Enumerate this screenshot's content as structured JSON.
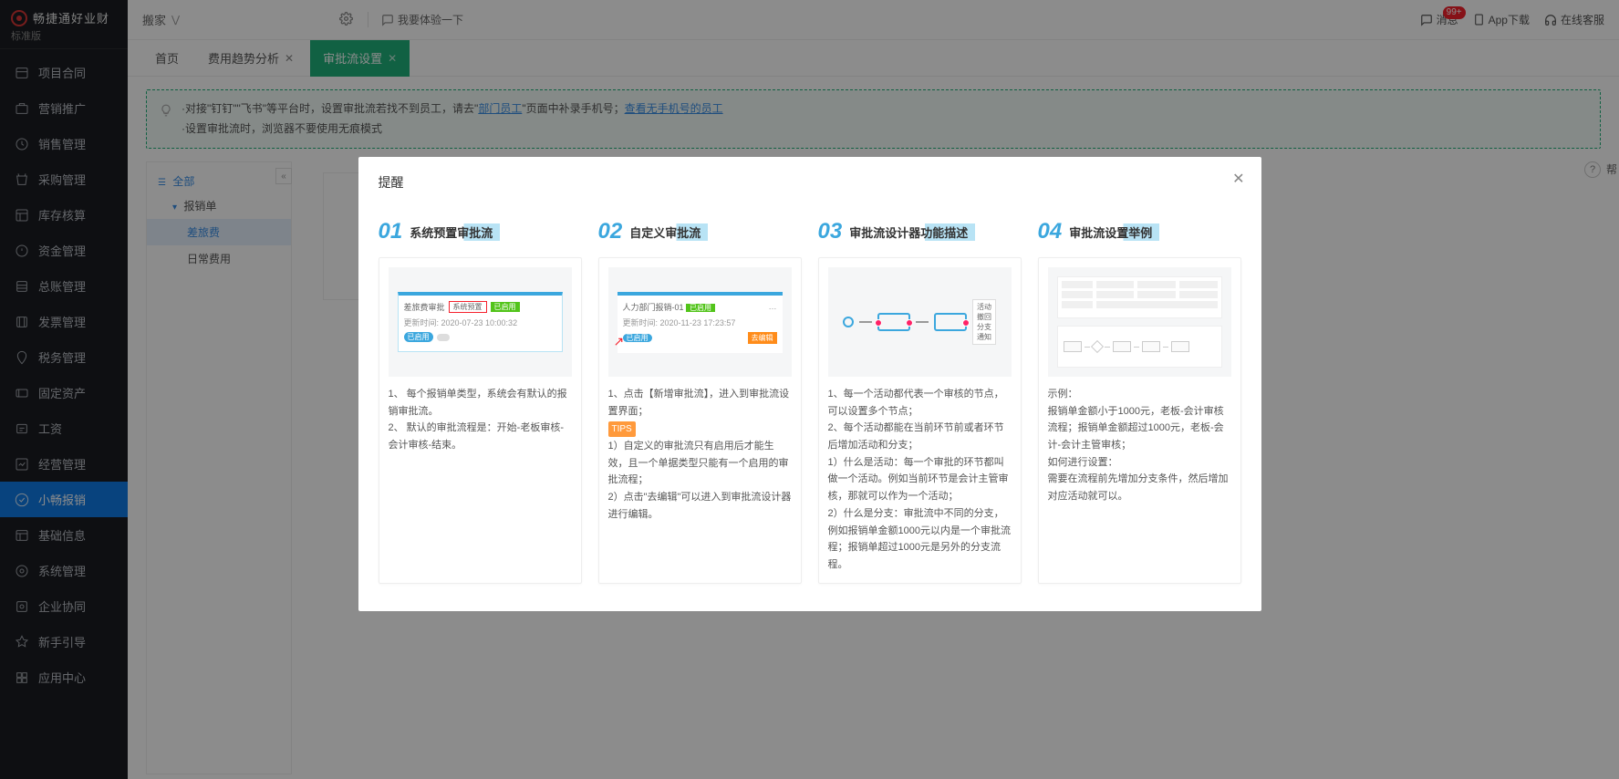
{
  "brand": {
    "name": "畅捷通好业财",
    "edition": "标准版"
  },
  "sidebar": {
    "items": [
      {
        "label": "项目合同"
      },
      {
        "label": "营销推广"
      },
      {
        "label": "销售管理"
      },
      {
        "label": "采购管理"
      },
      {
        "label": "库存核算"
      },
      {
        "label": "资金管理"
      },
      {
        "label": "总账管理"
      },
      {
        "label": "发票管理"
      },
      {
        "label": "税务管理"
      },
      {
        "label": "固定资产"
      },
      {
        "label": "工资"
      },
      {
        "label": "经营管理"
      },
      {
        "label": "小畅报销",
        "active": true
      },
      {
        "label": "基础信息"
      },
      {
        "label": "系统管理"
      },
      {
        "label": "企业协同"
      },
      {
        "label": "新手引导"
      },
      {
        "label": "应用中心"
      }
    ]
  },
  "topbar": {
    "org": "搬家",
    "try_label": "我要体验一下",
    "msg": {
      "label": "消息",
      "badge": "99+"
    },
    "download": "App下载",
    "service": "在线客服"
  },
  "tabs": [
    {
      "label": "首页",
      "closable": false
    },
    {
      "label": "费用趋势分析",
      "closable": true
    },
    {
      "label": "审批流设置",
      "closable": true,
      "active": true
    }
  ],
  "alert": {
    "line1_a": "·对接\"钉钉\"\"飞书\"等平台时，设置审批流若找不到员工，请去\"",
    "link1": "部门员工",
    "line1_b": "\"页面中补录手机号；",
    "link2": "查看无手机号的员工",
    "line2": "·设置审批流时，浏览器不要使用无痕模式"
  },
  "tree": {
    "root": "全部",
    "node": "报销单",
    "leaves": [
      {
        "label": "差旅费",
        "active": true
      },
      {
        "label": "日常费用"
      }
    ]
  },
  "help": "帮",
  "modal": {
    "title": "提醒",
    "cards": [
      {
        "num": "01",
        "title": "系统预置审批流",
        "desc": "1、 每个报销单类型，系统会有默认的报销审批流。\n2、 默认的审批流程是：开始-老板审核-会计审核-结束。",
        "mock": {
          "title_a": "差旅费审批",
          "chip": "系统预置",
          "chip2": "已启用",
          "time_label": "更新时间:",
          "time": "2020-07-23 10:00:32",
          "pill": "已启用"
        }
      },
      {
        "num": "02",
        "title": "自定义审批流",
        "desc": "1、点击【新增审批流】，进入到审批流设置界面；\n[TIPS]\n1）自定义的审批流只有启用后才能生效，且一个单据类型只能有一个启用的审批流程；\n2）点击\"去编辑\"可以进入到审批流设计器进行编辑。",
        "mock": {
          "title": "人力部门报销-01",
          "chip": "已启用",
          "dots": "…",
          "time_label": "更新时间:",
          "time": "2020-11-23 17:23:57",
          "pill": "已启用",
          "btn": "去编辑"
        }
      },
      {
        "num": "03",
        "title": "审批流设计器功能描述",
        "desc": "1、每一个活动都代表一个审核的节点，可以设置多个节点；\n2、每个活动都能在当前环节前或者环节后增加活动和分支；\n1）什么是活动：每一个审批的环节都叫做一个活动。例如当前环节是会计主管审核，那就可以作为一个活动；\n2）什么是分支：审批流中不同的分支，例如报销单金额1000元以内是一个审批流程；报销单超过1000元是另外的分支流程。",
        "mock": {
          "menu": [
            "活动",
            "撤回",
            "分支",
            "通知"
          ]
        }
      },
      {
        "num": "04",
        "title": "审批流设置举例",
        "desc": "示例：\n报销单金额小于1000元，老板-会计审核流程；报销单金额超过1000元，老板-会计-会计主管审核；\n如何进行设置：\n需要在流程前先增加分支条件，然后增加对应活动就可以。"
      }
    ]
  }
}
